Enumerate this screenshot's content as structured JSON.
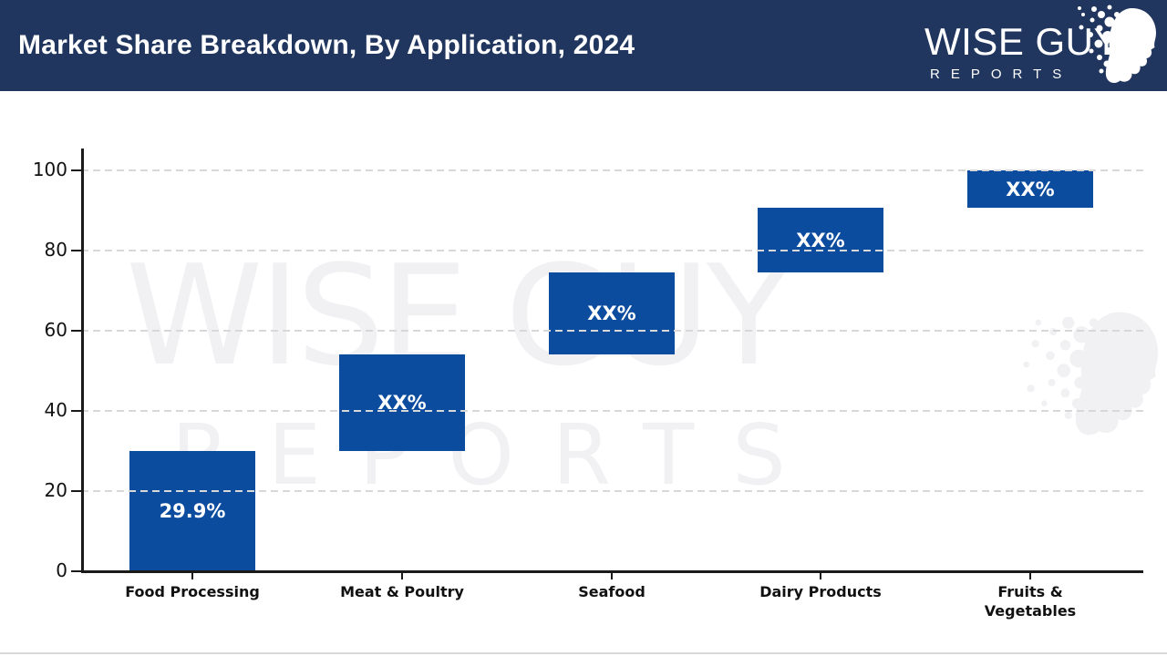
{
  "header": {
    "title": "Market Share Breakdown, By Application, 2024",
    "logo": {
      "name": "WISE GUY",
      "sub": "REPORTS"
    }
  },
  "watermark": {
    "line1": "WISE GUY",
    "line2": "REPORTS"
  },
  "chart_data": {
    "type": "bar",
    "subtype": "waterfall",
    "title": "Market Share Breakdown, By Application, 2024",
    "categories": [
      "Food Processing",
      "Meat & Poultry",
      "Seafood",
      "Dairy Products",
      "Fruits & Vegetables"
    ],
    "category_label_lines": [
      [
        "Food Processing"
      ],
      [
        "Meat & Poultry"
      ],
      [
        "Seafood"
      ],
      [
        "Dairy Products"
      ],
      [
        "Fruits &",
        "Vegetables"
      ]
    ],
    "segments": [
      {
        "category": "Food Processing",
        "start": 0,
        "end": 29.9,
        "label": "29.9%"
      },
      {
        "category": "Meat & Poultry",
        "start": 29.9,
        "end": 54.2,
        "label": "XX%"
      },
      {
        "category": "Seafood",
        "start": 54.2,
        "end": 74.5,
        "label": "XX%"
      },
      {
        "category": "Dairy Products",
        "start": 74.5,
        "end": 90.6,
        "label": "XX%"
      },
      {
        "category": "Fruits & Vegetables",
        "start": 90.6,
        "end": 100,
        "label": "XX%"
      }
    ],
    "ylim": [
      0,
      100
    ],
    "yticks": [
      0,
      20,
      40,
      60,
      80,
      100
    ],
    "grid": "dashed-horizontal",
    "legend": "none",
    "bar_color": "#0b4c9f",
    "bar_label_color": "#ffffff",
    "axis_color": "#1a1a1a",
    "grid_color": "#d8d8d8",
    "header_color": "#21365e",
    "watermark_color": "#f1f1f4"
  }
}
